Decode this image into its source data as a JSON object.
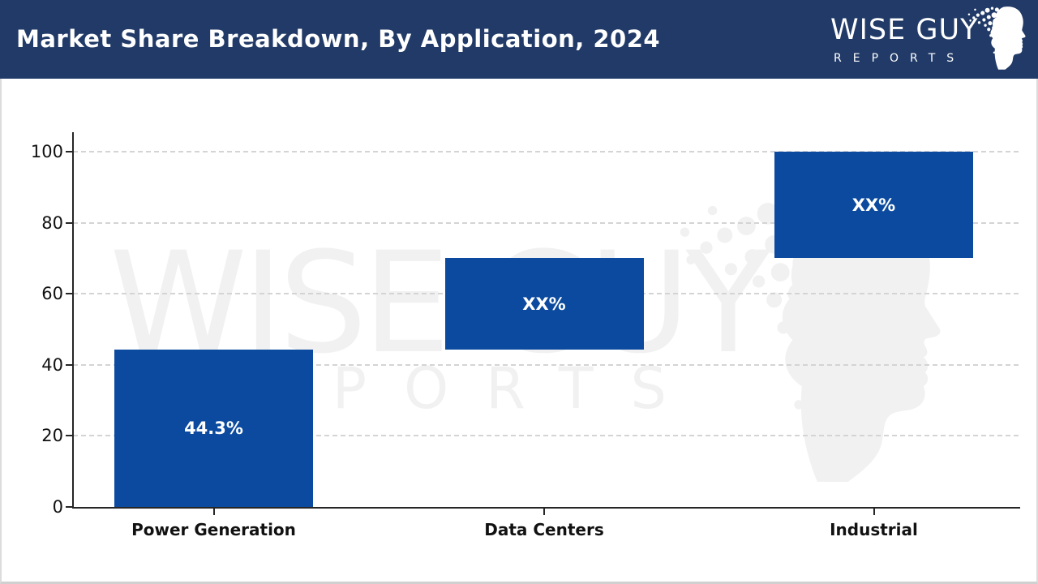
{
  "header": {
    "title": "Market Share Breakdown, By Application, 2024",
    "bg_color": "#213a67",
    "logo": {
      "line1": "WISE GUY",
      "line2": "REPORTS"
    }
  },
  "watermark": {
    "line1": "WISE GUY",
    "line2": "REPORTS"
  },
  "chart_data": {
    "type": "bar",
    "subtype": "waterfall",
    "title": "Market Share Breakdown, By Application, 2024",
    "categories": [
      "Power Generation",
      "Data Centers",
      "Industrial"
    ],
    "series": [
      {
        "name": "Market Share",
        "segments": [
          {
            "category": "Power Generation",
            "start": 0,
            "end": 44.3,
            "label": "44.3%"
          },
          {
            "category": "Data Centers",
            "start": 44.3,
            "end": 70,
            "label": "XX%"
          },
          {
            "category": "Industrial",
            "start": 70,
            "end": 100,
            "label": "XX%"
          }
        ]
      }
    ],
    "xlabel": "",
    "ylabel": "",
    "ylim": [
      0,
      100
    ],
    "yticks": [
      0,
      20,
      40,
      60,
      80,
      100
    ],
    "grid": true,
    "gridline_style": "dashed",
    "bar_color": "#0b4a9e",
    "value_label_color": "#ffffff",
    "legend": "none"
  }
}
